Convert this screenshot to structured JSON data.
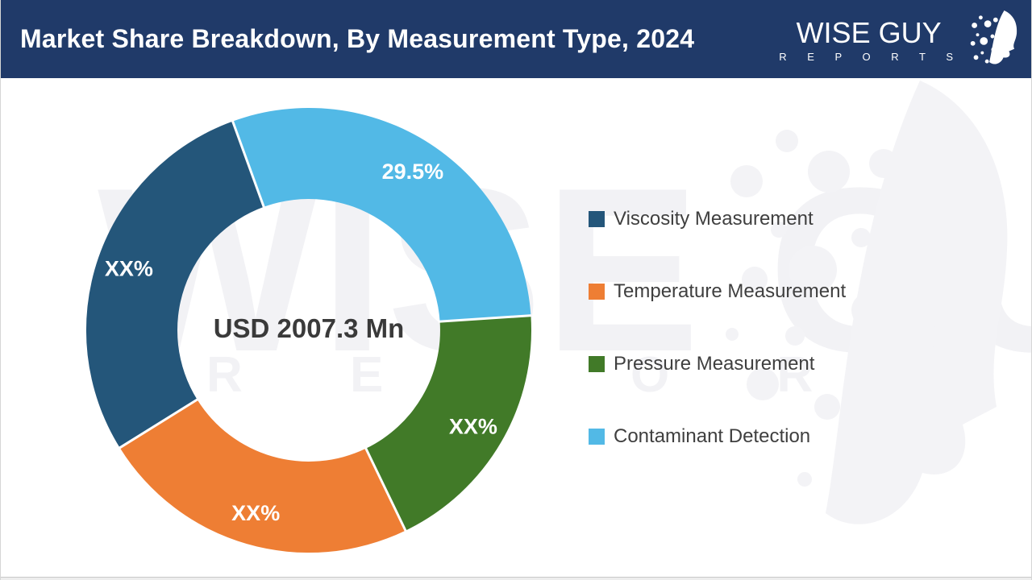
{
  "header": {
    "title": "Market Share Breakdown, By Measurement Type, 2024",
    "logo": {
      "name": "WISE GUY",
      "tagline": "R E P O R T S"
    }
  },
  "watermark": {
    "wordmark": "WISE GUY",
    "tagline": "R E P O R T S"
  },
  "chart_data": {
    "type": "pie",
    "subtype": "donut",
    "title": "Market Share Breakdown, By Measurement Type, 2024",
    "center_label": "USD 2007.3 Mn",
    "total_value_usd_mn": 2007.3,
    "legend_position": "right",
    "start_angle_deg_clockwise_from_top": -20,
    "note_direction": "segments run counterclockwise in legend order from the start angle",
    "segments": [
      {
        "name": "Viscosity Measurement",
        "label": "XX%",
        "value_pct_est": 28.3,
        "color": "#24567A"
      },
      {
        "name": "Temperature Measurement",
        "label": "XX%",
        "value_pct_est": 23.3,
        "color": "#EE7E34"
      },
      {
        "name": "Pressure Measurement",
        "label": "XX%",
        "value_pct_est": 18.9,
        "color": "#417A28"
      },
      {
        "name": "Contaminant Detection",
        "label": "29.5%",
        "value_pct_est": 29.5,
        "color": "#52B9E6"
      }
    ]
  }
}
